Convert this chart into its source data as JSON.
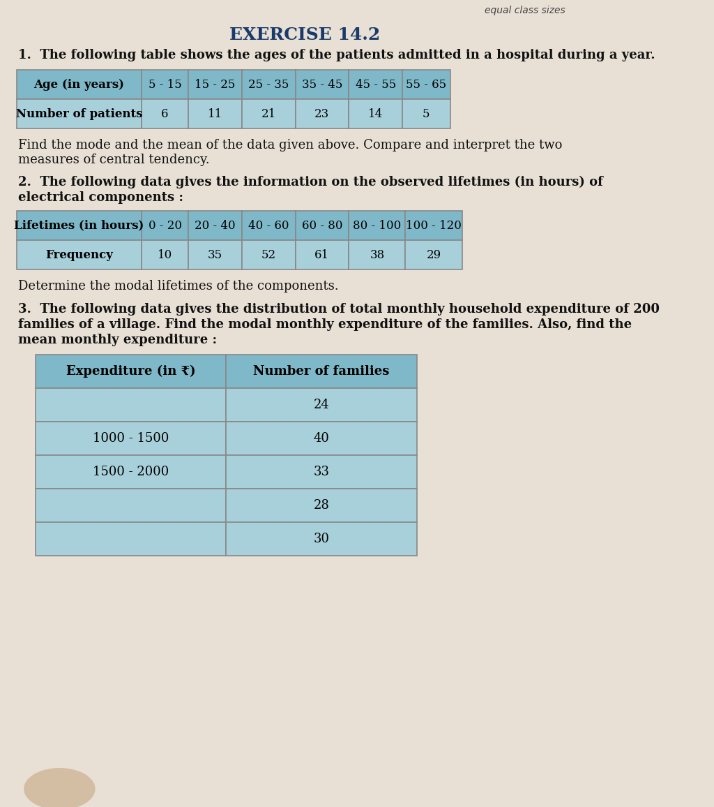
{
  "title": "EXERCISE 14.2",
  "background_color": "#d4cfc9",
  "page_bg": "#e8e0d5",
  "table1": {
    "header_row": [
      "Age (in years)",
      "5 - 15",
      "15 - 25",
      "25 - 35",
      "35 - 45",
      "45 - 55",
      "55 - 65"
    ],
    "data_row": [
      "Number of patients",
      "6",
      "11",
      "21",
      "23",
      "14",
      "5"
    ],
    "header_bg": "#7fb8c8",
    "cell_bg": "#a8d0db",
    "text_color": "#000000"
  },
  "q1_text_lines": [
    "1.  The following table shows the ages of the patients admitted in a hospital during a year.",
    "Find the mode and the mean of the data given above. Compare and interpret the two",
    "measures of central tendency."
  ],
  "table2": {
    "header_row": [
      "Lifetimes (in hours)",
      "0 - 20",
      "20 - 40",
      "40 - 60",
      "60 - 80",
      "80 - 100",
      "100 - 120"
    ],
    "data_row": [
      "Frequency",
      "10",
      "35",
      "52",
      "61",
      "38",
      "29"
    ],
    "header_bg": "#7fb8c8",
    "cell_bg": "#a8d0db",
    "text_color": "#000000"
  },
  "q2_text_lines": [
    "2.  The following data gives the information on the observed lifetimes (in hours) of",
    "electrical components :",
    "Determine the modal lifetimes of the components."
  ],
  "q3_text_lines": [
    "3.  The following data gives the distribution of total monthly household expenditure of 200",
    "families of a village. Find the modal monthly expenditure of the families. Also, find the",
    "mean monthly expenditure :"
  ],
  "table3": {
    "col1_header": "Expenditure (in ₹)",
    "col2_header": "Number of families",
    "rows": [
      [
        "",
        "24"
      ],
      [
        "1000 - 1500",
        "40"
      ],
      [
        "1500 - 2000",
        "33"
      ],
      [
        "",
        "28"
      ],
      [
        "",
        "30"
      ]
    ],
    "header_bg": "#7fb8c8",
    "cell_bg": "#a8d0db"
  },
  "top_right_text": "equal class sizes",
  "font_size_title": 18,
  "font_size_body": 13,
  "font_size_table": 12
}
